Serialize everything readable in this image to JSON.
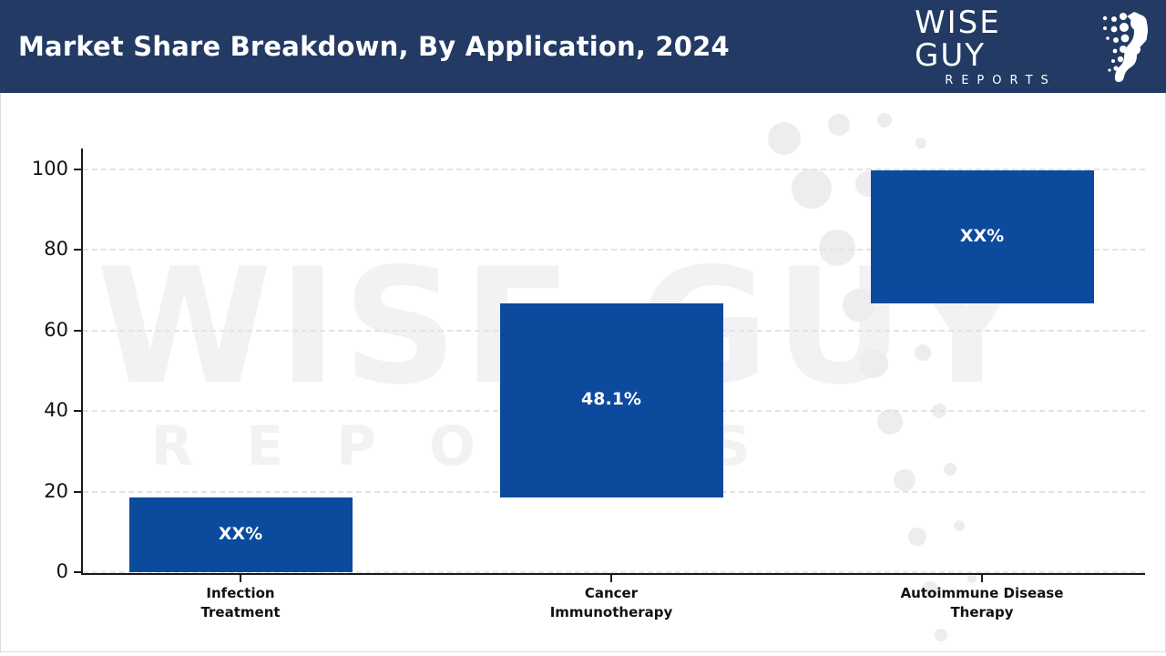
{
  "header": {
    "title": "Market Share Breakdown, By Application, 2024",
    "background_color": "#223a64",
    "logo": {
      "line1": "WISE GUY",
      "line2": "REPORTS"
    }
  },
  "watermark": {
    "line1": "WISE GUY",
    "line2": "REPORTS"
  },
  "chart_data": {
    "type": "bar",
    "subtype": "waterfall",
    "title": "Market Share Breakdown, By Application, 2024",
    "categories": [
      [
        "Infection",
        "Treatment"
      ],
      [
        "Cancer",
        "Immunotherapy"
      ],
      [
        "Autoimmune Disease",
        "Therapy"
      ]
    ],
    "segments": [
      {
        "start": 0,
        "end": 18.6,
        "label": "XX%"
      },
      {
        "start": 18.6,
        "end": 66.7,
        "label": "48.1%"
      },
      {
        "start": 66.7,
        "end": 99.8,
        "label": "XX%"
      }
    ],
    "yticks": [
      0,
      20,
      40,
      60,
      80,
      100
    ],
    "ylim": [
      0,
      105
    ],
    "xlabel": "",
    "ylabel": "",
    "grid": "horizontal-dashed",
    "legend": "none",
    "bar_color": "#0b4a9d",
    "bar_label_color": "#ffffff",
    "axis_color": "#1a1a1a"
  }
}
